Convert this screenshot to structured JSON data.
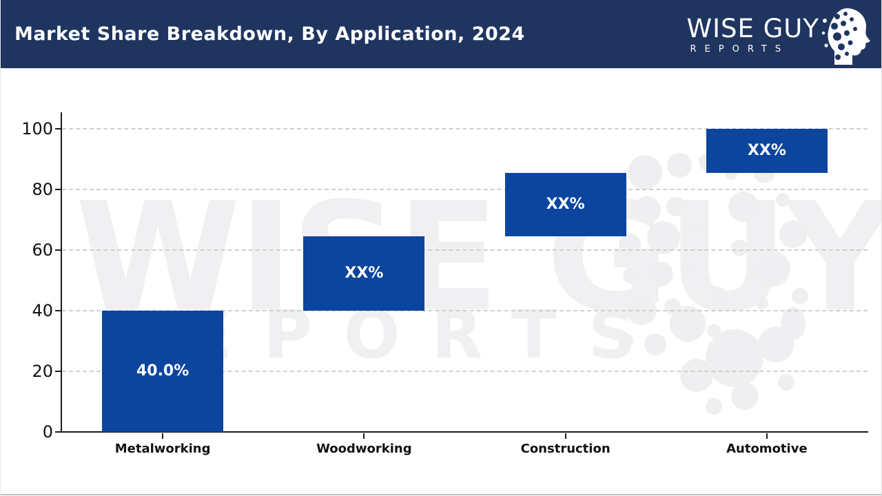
{
  "header": {
    "title": "Market Share Breakdown, By Application, 2024",
    "logo": {
      "line1": "WISE GUY",
      "line2": "REPORTS"
    }
  },
  "watermark": {
    "line1": "WISE GUY",
    "line2": "REPORTS"
  },
  "chart_data": {
    "type": "bar",
    "subtype": "floating-waterfall",
    "title": "Market Share Breakdown, By Application, 2024",
    "categories": [
      "Metalworking",
      "Woodworking",
      "Construction",
      "Automotive"
    ],
    "segments": [
      {
        "category": "Metalworking",
        "start": 0,
        "end": 40,
        "label": "40.0%"
      },
      {
        "category": "Woodworking",
        "start": 40,
        "end": 64.5,
        "label": "XX%"
      },
      {
        "category": "Construction",
        "start": 64.5,
        "end": 85.5,
        "label": "XX%"
      },
      {
        "category": "Automotive",
        "start": 85.5,
        "end": 100,
        "label": "XX%"
      }
    ],
    "ylim": [
      0,
      105
    ],
    "yticks": [
      0,
      20,
      40,
      60,
      80,
      100
    ],
    "xlabel": "",
    "ylabel": "",
    "grid": "horizontal-dashed",
    "legend": "none",
    "bar_color": "#0b459e"
  },
  "colors": {
    "header_bg": "#1f3560",
    "bar": "#0b459e",
    "gridline": "#cfcfcf",
    "axis": "#1a1a1a",
    "watermark": "#f0f0f2"
  }
}
